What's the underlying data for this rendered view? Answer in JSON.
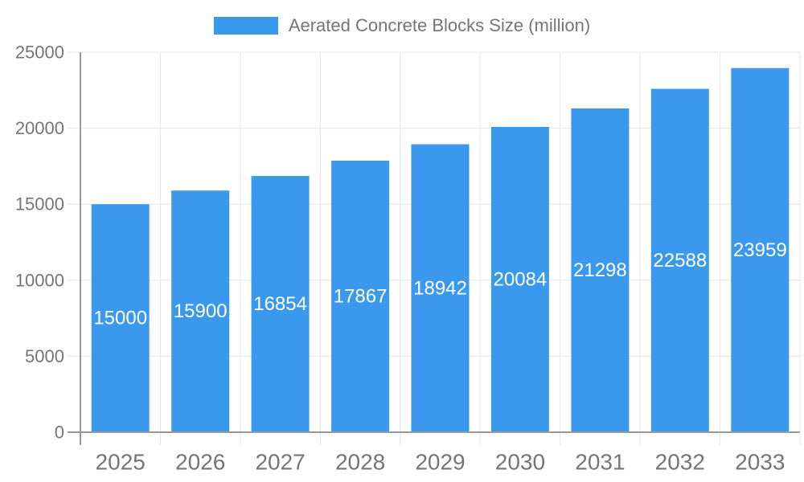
{
  "chart_data": {
    "type": "bar",
    "title": "",
    "legend": "Aerated Concrete Blocks Size (million)",
    "legend_position": "top",
    "categories": [
      "2025",
      "2026",
      "2027",
      "2028",
      "2029",
      "2030",
      "2031",
      "2032",
      "2033"
    ],
    "series": [
      {
        "name": "Aerated Concrete Blocks Size (million)",
        "values": [
          15000,
          15900,
          16854,
          17867,
          18942,
          20084,
          21298,
          22588,
          23959
        ]
      }
    ],
    "xlabel": "",
    "ylabel": "",
    "ylim": [
      0,
      25000
    ],
    "y_ticks": [
      0,
      5000,
      10000,
      15000,
      20000,
      25000
    ],
    "grid": true,
    "bar_labels_inside": true,
    "colors": {
      "bar": "#3A99EC",
      "grid": "#E5E5E5",
      "axis": "#999999",
      "tick_label": "#757575",
      "legend_text": "#757575",
      "bar_label": "#FFFFFF",
      "background": "#FFFFFF"
    }
  }
}
